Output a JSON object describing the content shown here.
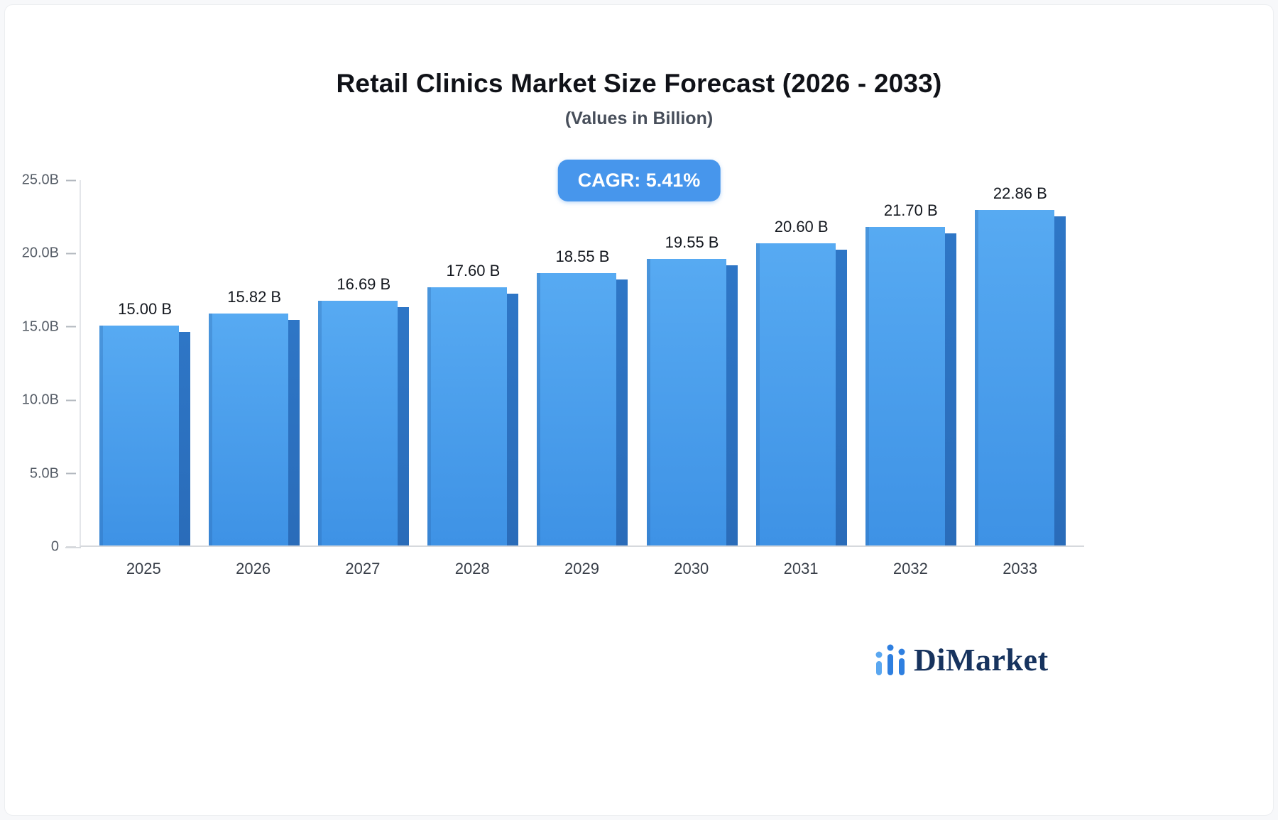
{
  "title": "Retail Clinics Market Size Forecast (2026 - 2033)",
  "subtitle": "(Values in Billion)",
  "cagr_badge": "CAGR: 5.41%",
  "colors": {
    "badge_bg": "#4796ec",
    "bar_face_top": "#57aaf2",
    "bar_face_bottom": "#3e92e5",
    "bar_side": "#2c72c1",
    "axis_line": "#d6d9dd",
    "logo_blue": "#2e7fe0",
    "logo_text": "#17335e"
  },
  "chart_data": {
    "type": "bar",
    "title": "Retail Clinics Market Size Forecast (2026 - 2033)",
    "subtitle": "(Values in Billion)",
    "categories": [
      "2025",
      "2026",
      "2027",
      "2028",
      "2029",
      "2030",
      "2031",
      "2032",
      "2033"
    ],
    "values": [
      15.0,
      15.82,
      16.69,
      17.6,
      18.55,
      19.55,
      20.6,
      21.7,
      22.86
    ],
    "value_labels": [
      "15.00 B",
      "15.82 B",
      "16.69 B",
      "17.60 B",
      "18.55 B",
      "19.55 B",
      "20.60 B",
      "21.70 B",
      "22.86 B"
    ],
    "xlabel": "",
    "ylabel": "",
    "ylim": [
      0,
      25
    ],
    "yticks": [
      0,
      5,
      10,
      15,
      20,
      25
    ],
    "ytick_labels": [
      "0",
      "5.0B",
      "10.0B",
      "15.0B",
      "20.0B",
      "25.0B"
    ],
    "annotation": "CAGR: 5.41%",
    "grid": false,
    "legend": false
  },
  "logo": {
    "text": "DiMarket",
    "icon": "bar-chart-logo-icon"
  }
}
